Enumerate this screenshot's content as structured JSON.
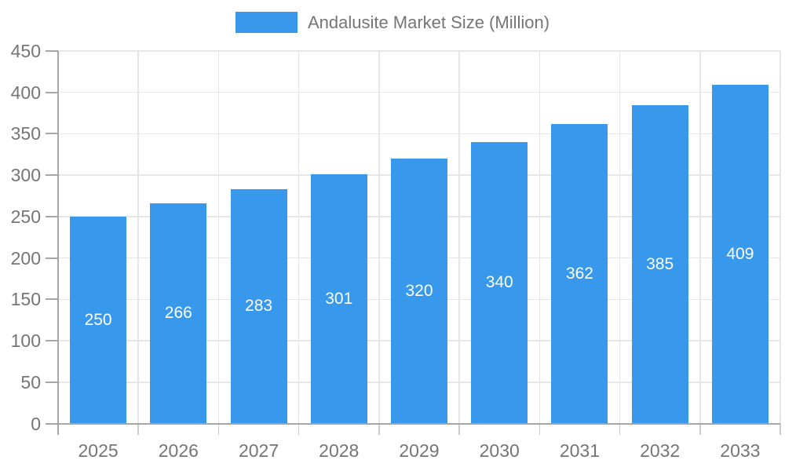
{
  "legend": {
    "label": "Andalusite Market Size (Million)"
  },
  "colors": {
    "bar": "#3899ec",
    "grid": "#e6e6e6",
    "axis": "#a6a6a6",
    "x_tick": "#cccccc",
    "tick_label": "#757575",
    "bar_label": "#ffffff",
    "background": "#ffffff"
  },
  "chart_data": {
    "type": "bar",
    "title": "Andalusite Market Size (Million)",
    "series_name": "Andalusite Market Size (Million)",
    "categories": [
      "2025",
      "2026",
      "2027",
      "2028",
      "2029",
      "2030",
      "2031",
      "2032",
      "2033"
    ],
    "values": [
      250,
      266,
      283,
      301,
      320,
      340,
      362,
      385,
      409
    ],
    "xlabel": "",
    "ylabel": "",
    "ylim": [
      0,
      450
    ],
    "yticks": [
      0,
      50,
      100,
      150,
      200,
      250,
      300,
      350,
      400,
      450
    ],
    "grid": true,
    "legend_position": "top",
    "bar_value_labels": "inside-center"
  }
}
